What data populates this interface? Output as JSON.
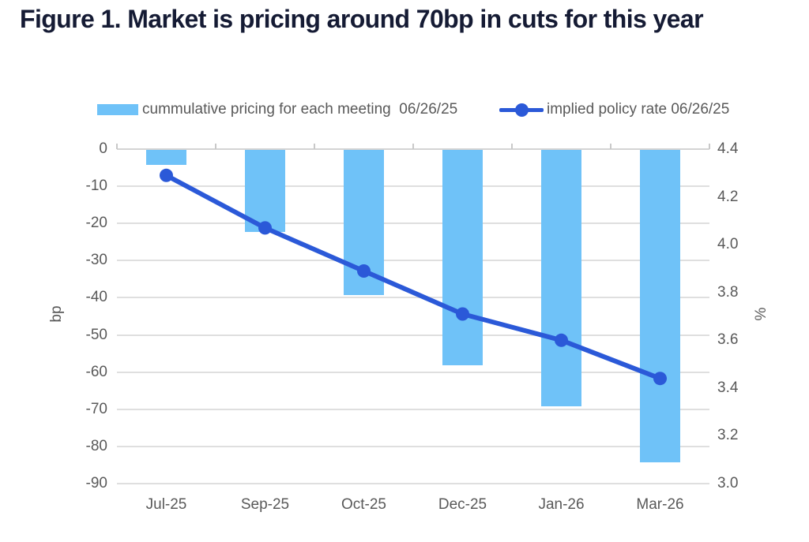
{
  "title": "Figure 1. Market is pricing around 70bp in cuts for this year",
  "legend": {
    "bar_label": "cummulative pricing for each meeting  06/26/25",
    "line_label": "implied policy rate 06/26/25"
  },
  "chart_data": {
    "type": "bar",
    "subtype": "bar-and-line-dual-axis",
    "categories": [
      "Jul-25",
      "Sep-25",
      "Oct-25",
      "Dec-25",
      "Jan-26",
      "Mar-26"
    ],
    "series": [
      {
        "name": "cummulative pricing for each meeting 06/26/25",
        "type": "bar",
        "axis": "left",
        "unit": "bp",
        "values": [
          -4,
          -22,
          -39,
          -58,
          -69,
          -84
        ]
      },
      {
        "name": "implied policy rate 06/26/25",
        "type": "line",
        "axis": "right",
        "unit": "%",
        "values": [
          4.29,
          4.07,
          3.89,
          3.71,
          3.6,
          3.44
        ]
      }
    ],
    "left_axis": {
      "label": "bp",
      "ticks": [
        0,
        -10,
        -20,
        -30,
        -40,
        -50,
        -60,
        -70,
        -80,
        -90
      ],
      "range": [
        0,
        -90
      ]
    },
    "right_axis": {
      "label": "%",
      "ticks": [
        4.4,
        4.2,
        4.0,
        3.8,
        3.6,
        3.4,
        3.2,
        3.0
      ],
      "range": [
        4.4,
        3.0
      ]
    },
    "grid": true,
    "legend_position": "top",
    "colors": {
      "bar": "#6FC2F8",
      "line": "#2B59D8",
      "grid": "#DFDFDF",
      "axis": "#D4D4D4",
      "tick": "#C9C9C9",
      "text": "#595959",
      "title": "#151B34"
    }
  }
}
